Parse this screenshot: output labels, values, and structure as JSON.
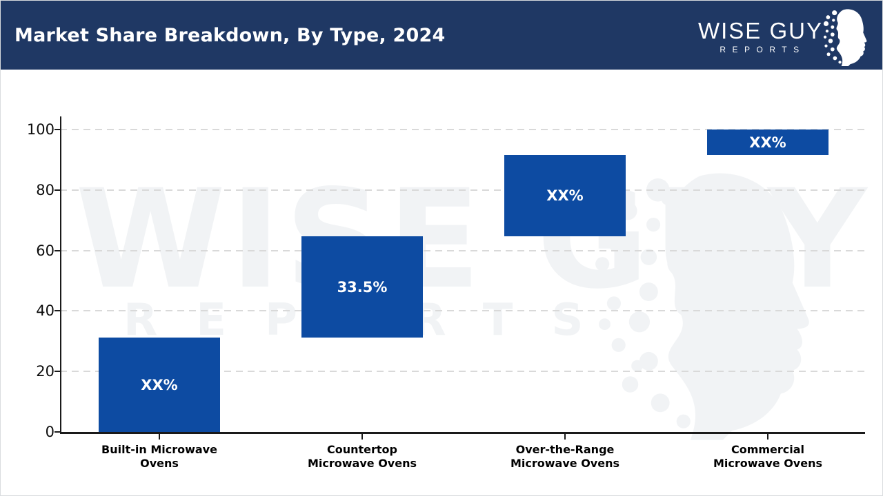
{
  "header": {
    "title": "Market Share Breakdown, By Type, 2024",
    "logo": {
      "name": "WISE GUY",
      "subtitle": "REPORTS"
    }
  },
  "watermark": {
    "line1": "WISE GUY",
    "line2": "REPORTS"
  },
  "colors": {
    "header_bg": "#1f3864",
    "header_text": "#ffffff",
    "bar": "#0d4ba2",
    "bar_label": "#ffffff",
    "grid": "#d9d9d9",
    "axis": "#1a1a1a",
    "watermark": "#f1f3f5"
  },
  "chart_data": {
    "type": "bar",
    "subtype": "waterfall",
    "title": "Market Share Breakdown, By Type, 2024",
    "categories": [
      "Built-in Microwave Ovens",
      "Countertop Microwave Ovens",
      "Over-the-Range Microwave Ovens",
      "Commercial Microwave Ovens"
    ],
    "category_label_lines": [
      [
        "Built-in Microwave",
        "Ovens"
      ],
      [
        "Countertop",
        "Microwave Ovens"
      ],
      [
        "Over-the-Range",
        "Microwave Ovens"
      ],
      [
        "Commercial",
        "Microwave Ovens"
      ]
    ],
    "segments": [
      {
        "category": "Built-in Microwave Ovens",
        "start": 0,
        "end": 31.1,
        "label": "XX%"
      },
      {
        "category": "Countertop Microwave Ovens",
        "start": 31.1,
        "end": 64.6,
        "label": "33.5%"
      },
      {
        "category": "Over-the-Range Microwave Ovens",
        "start": 64.6,
        "end": 91.5,
        "label": "XX%"
      },
      {
        "category": "Commercial Microwave Ovens",
        "start": 91.5,
        "end": 100,
        "label": "XX%"
      }
    ],
    "y_ticks": [
      0,
      20,
      40,
      60,
      80,
      100
    ],
    "ylim": [
      0,
      100
    ],
    "xlabel": "",
    "ylabel": "",
    "grid": "horizontal-dashed",
    "legend": "none",
    "bar_color": "#0d4ba2"
  }
}
